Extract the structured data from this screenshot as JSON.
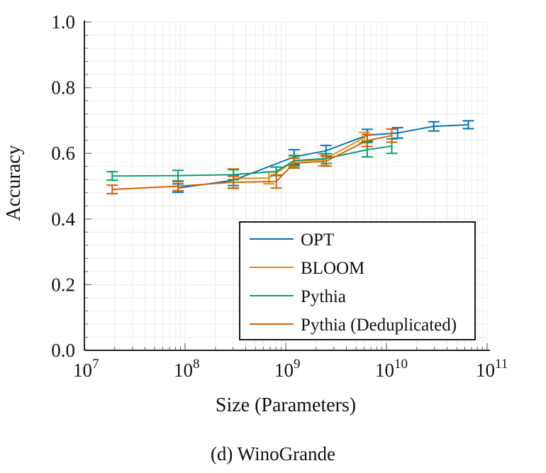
{
  "figure": {
    "caption": "(d) WinoGrande"
  },
  "chart_data": {
    "type": "line",
    "title": "",
    "xlabel": "Size (Parameters)",
    "ylabel": "Accuracy",
    "x_scale": "log",
    "xlim": [
      10000000.0,
      100000000000.0
    ],
    "ylim": [
      0.0,
      1.0
    ],
    "x_ticks": [
      "10^7",
      "10^8",
      "10^9",
      "10^10",
      "10^11"
    ],
    "y_ticks": [
      "0.0",
      "0.2",
      "0.4",
      "0.6",
      "0.8",
      "1.0"
    ],
    "grid": true,
    "legend_position": "inside lower right",
    "colors": {
      "grid": "#ececec",
      "axis": "#000000",
      "tick": "#777777",
      "legend_border": "#000000",
      "background": "#ffffff"
    },
    "series": [
      {
        "name": "OPT",
        "color": "#0173b2",
        "x": [
          85000000.0,
          302000000.0,
          1210000000.0,
          2510000000.0,
          6440000000.0,
          12900000000.0,
          29500000000.0,
          65000000000.0
        ],
        "y": [
          0.494,
          0.518,
          0.589,
          0.608,
          0.655,
          0.662,
          0.682,
          0.687
        ],
        "yerr": [
          0.013,
          0.016,
          0.022,
          0.016,
          0.018,
          0.016,
          0.014,
          0.012
        ]
      },
      {
        "name": "BLOOM",
        "color": "#de8f05",
        "x": [
          302000000.0,
          680000000.0,
          1210000000.0,
          2360000000.0,
          6050000000.0
        ],
        "y": [
          0.523,
          0.525,
          0.576,
          0.58,
          0.648
        ],
        "yerr": [
          0.03,
          0.018,
          0.018,
          0.018,
          0.016
        ]
      },
      {
        "name": "Pythia",
        "color": "#029e73",
        "x": [
          18900000.0,
          85100000.0,
          302000000.0,
          805000000.0,
          1210000000.0,
          2520000000.0,
          6440000000.0,
          11300000000.0
        ],
        "y": [
          0.531,
          0.532,
          0.535,
          0.545,
          0.578,
          0.584,
          0.611,
          0.622
        ],
        "yerr": [
          0.013,
          0.016,
          0.015,
          0.013,
          0.015,
          0.015,
          0.022,
          0.022
        ]
      },
      {
        "name": "Pythia (Deduplicated)",
        "color": "#d55e00",
        "x": [
          18900000.0,
          85100000.0,
          302000000.0,
          805000000.0,
          1210000000.0,
          2520000000.0,
          6440000000.0,
          11300000000.0
        ],
        "y": [
          0.49,
          0.5,
          0.512,
          0.514,
          0.57,
          0.576,
          0.639,
          0.654
        ],
        "yerr": [
          0.013,
          0.014,
          0.018,
          0.02,
          0.015,
          0.015,
          0.018,
          0.02
        ]
      }
    ]
  }
}
